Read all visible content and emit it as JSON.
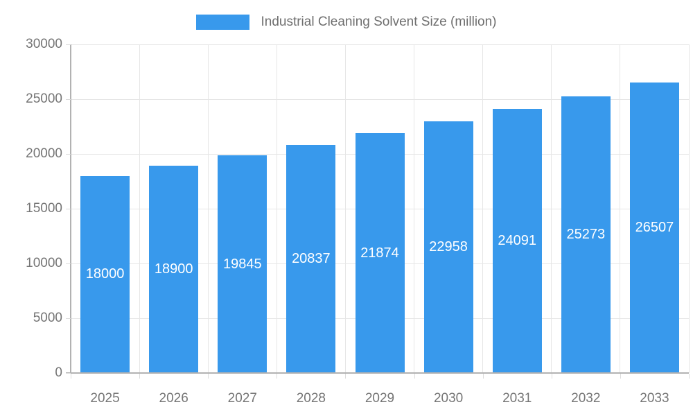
{
  "legend": {
    "label": "Industrial Cleaning Solvent Size (million)",
    "swatch_color": "#3899ec"
  },
  "chart_data": {
    "type": "bar",
    "title": "Industrial Cleaning Solvent Size (million)",
    "categories": [
      "2025",
      "2026",
      "2027",
      "2028",
      "2029",
      "2030",
      "2031",
      "2032",
      "2033"
    ],
    "values": [
      18000,
      18900,
      19845,
      20837,
      21874,
      22958,
      24091,
      25273,
      26507
    ],
    "data_labels": [
      "18000",
      "18900",
      "19845",
      "20837",
      "21874",
      "22958",
      "24091",
      "25273",
      "26507"
    ],
    "xlabel": "",
    "ylabel": "",
    "ylim": [
      0,
      30000
    ],
    "yticks": [
      0,
      5000,
      10000,
      15000,
      20000,
      25000,
      30000
    ],
    "grid": true,
    "legend_position": "top",
    "bar_color": "#3899ec",
    "data_label_color": "#ffffff",
    "axis_text_color": "#757575",
    "gridline_color": "#e6e6e6",
    "axis_line_color": "#b2b2b2"
  }
}
